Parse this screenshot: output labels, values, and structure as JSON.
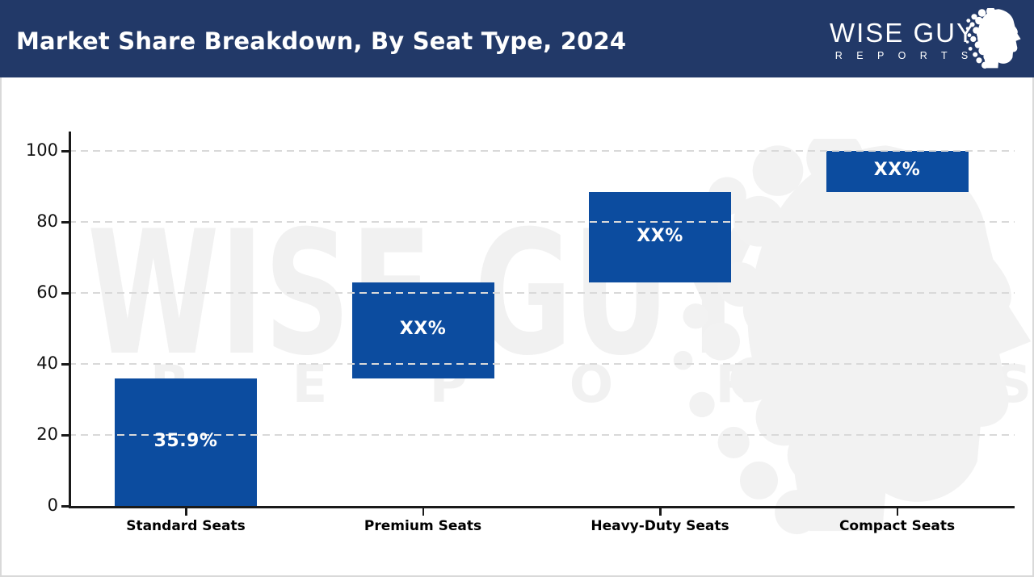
{
  "header": {
    "title": "Market Share Breakdown, By Seat Type, 2024",
    "logo": {
      "brand": "Wise Guy Reports",
      "line1": "WISE GUY",
      "line2": "R E P O R T S"
    }
  },
  "watermark": {
    "line1": "WISE GUY",
    "line2": "R E P O R T S"
  },
  "chart_data": {
    "type": "bar",
    "variant": "floating-segment (waterfall-style cumulative market share)",
    "title": "Market Share Breakdown, By Seat Type, 2024",
    "categories": [
      "Standard Seats",
      "Premium Seats",
      "Heavy-Duty Seats",
      "Compact Seats"
    ],
    "segments": [
      {
        "category": "Standard Seats",
        "start": 0,
        "end": 35.9,
        "label": "35.9%"
      },
      {
        "category": "Premium Seats",
        "start": 35.9,
        "end": 63,
        "label": "XX%"
      },
      {
        "category": "Heavy-Duty Seats",
        "start": 63,
        "end": 88.5,
        "label": "XX%"
      },
      {
        "category": "Compact Seats",
        "start": 88.5,
        "end": 100,
        "label": "XX%"
      }
    ],
    "xlabel": "",
    "ylabel": "",
    "ylim": [
      0,
      105
    ],
    "yticks": [
      0,
      20,
      40,
      60,
      80,
      100
    ],
    "grid": {
      "axis": "y",
      "style": "dashed"
    },
    "legend": "none",
    "bar_color": "#0c4c9f",
    "bar_label_color": "#ffffff"
  },
  "colors": {
    "header_bg": "#223968",
    "bar": "#0c4c9f",
    "grid": "#d9d9d9",
    "axis": "#1a1a1a",
    "watermark_text": "#f1f1f1",
    "watermark_face": "#f2f2f2",
    "card_border": "#d9d9d9"
  }
}
